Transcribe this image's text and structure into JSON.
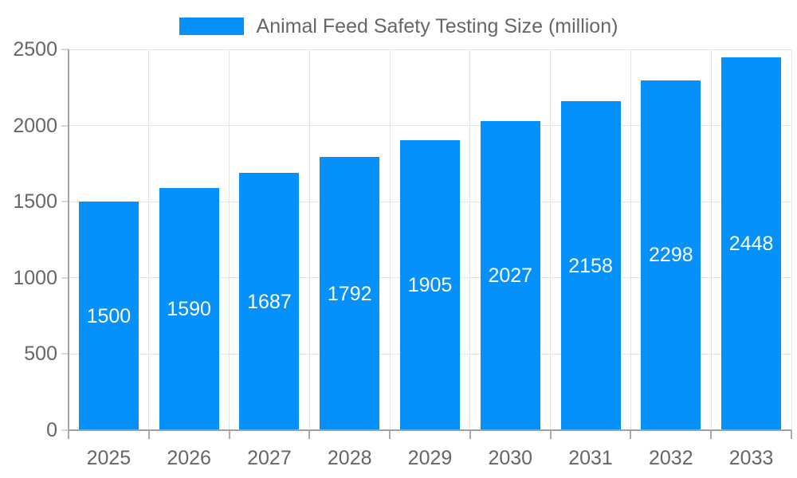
{
  "legend": {
    "label": "Animal Feed Safety Testing Size (million)"
  },
  "colors": {
    "bar": "#0591fb",
    "axis_text": "#666666",
    "bar_label_text": "#ffffff",
    "gridline": "#e4e4e4",
    "axis_line": "#a0a0a0"
  },
  "chart_data": {
    "type": "bar",
    "title": "Animal Feed Safety Testing Size (million)",
    "categories": [
      "2025",
      "2026",
      "2027",
      "2028",
      "2029",
      "2030",
      "2031",
      "2032",
      "2033"
    ],
    "values": [
      1500,
      1590,
      1687,
      1792,
      1905,
      2027,
      2158,
      2298,
      2448
    ],
    "xlabel": "",
    "ylabel": "",
    "ylim": [
      0,
      2500
    ],
    "yticks": [
      0,
      500,
      1000,
      1500,
      2000,
      2500
    ],
    "grid": true,
    "legend_position": "top",
    "bar_color": "#0591fb",
    "value_labels": "inside-center"
  }
}
